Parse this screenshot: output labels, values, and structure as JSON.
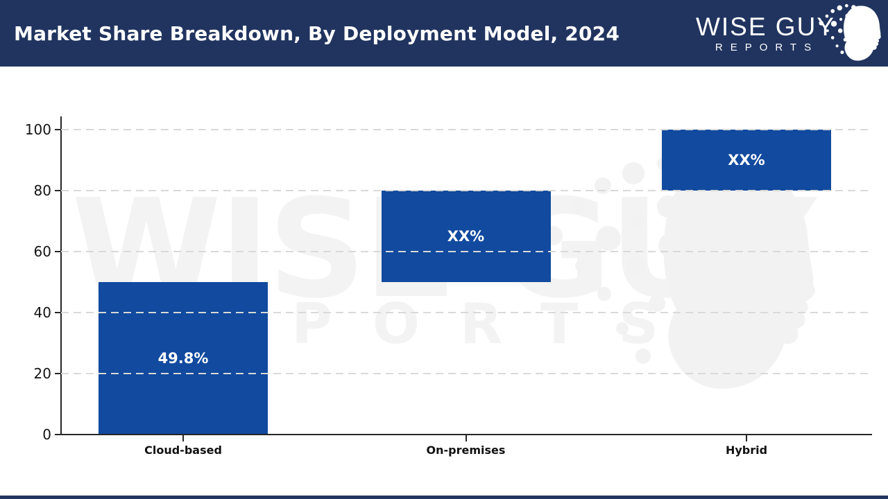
{
  "header": {
    "title": "Market Share Breakdown, By Deployment Model, 2024",
    "logo": {
      "line1": "WISE GUY",
      "line2": "REPORTS"
    }
  },
  "watermark": {
    "line1": "WISE GUY",
    "line2": "REPORTS"
  },
  "colors": {
    "header_bg": "#21345F",
    "bar": "#114A9E",
    "grid": "#D9D9D9",
    "axis": "#262626",
    "bar_label_text": "#FFFFFF",
    "watermark_text": "#F3F3F4"
  },
  "chart_data": {
    "type": "bar",
    "subtype": "floating-segment-breakdown",
    "title": "Market Share Breakdown, By Deployment Model, 2024",
    "categories": [
      "Cloud-based",
      "On-premises",
      "Hybrid"
    ],
    "bars": [
      {
        "category": "Cloud-based",
        "start": 0,
        "end": 49.8,
        "label": "49.8%"
      },
      {
        "category": "On-premises",
        "start": 49.8,
        "end": 79.8,
        "label": "XX%"
      },
      {
        "category": "Hybrid",
        "start": 79.8,
        "end": 100,
        "label": "XX%"
      }
    ],
    "xlabel": "",
    "ylabel": "",
    "ylim": [
      0,
      100
    ],
    "yticks": [
      0,
      20,
      40,
      60,
      80,
      100
    ],
    "grid": "horizontal dashed, drawn above bars",
    "legend": "none"
  }
}
